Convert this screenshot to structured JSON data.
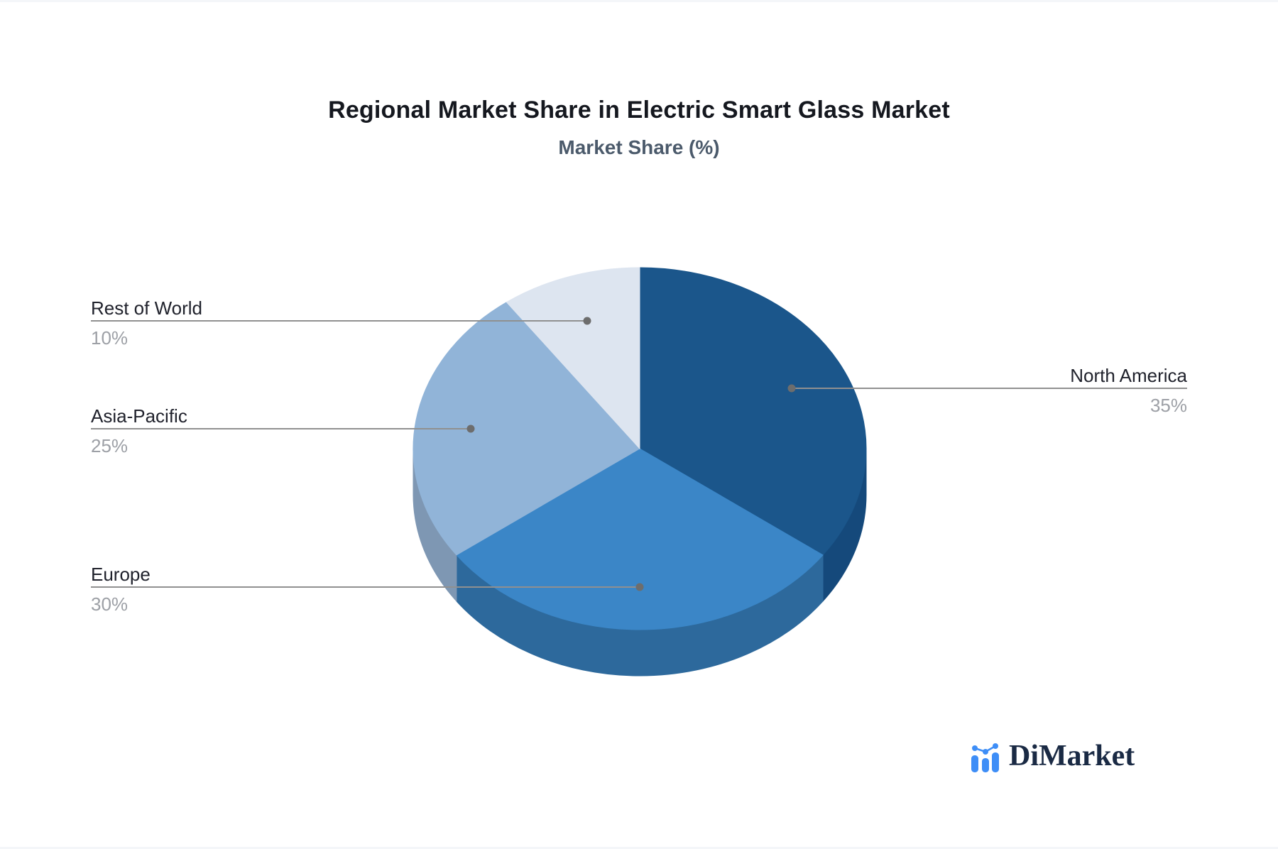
{
  "page": {
    "background": "#ffffff"
  },
  "chart_data": {
    "type": "pie",
    "effect": "3d",
    "title": "Regional Market Share in Electric Smart Glass Market",
    "subtitle": "Market Share (%)",
    "categories": [
      "North America",
      "Europe",
      "Asia-Pacific",
      "Rest of World"
    ],
    "values": [
      35,
      30,
      25,
      10
    ],
    "value_labels": [
      "35%",
      "30%",
      "25%",
      "10%"
    ],
    "unit": "%",
    "start_angle_deg": 0,
    "direction": "clockwise",
    "colors": [
      "#1B568B",
      "#3B86C7",
      "#91B4D8",
      "#DDE5F0"
    ],
    "side_colors": [
      "#15497B",
      "#2D699C",
      "#7E97B3",
      "#C9D3E2"
    ],
    "label_color": "#20222C",
    "value_color": "#9DA0A6",
    "callout_line_color": "#909090",
    "callout_dot_color": "#6D6D6D",
    "legend_position": "callout-labels"
  },
  "branding": {
    "logo_text": "DiMarket",
    "logo_icon": "bar-chart-trend-icon",
    "logo_text_color": "#1A2A44",
    "logo_icon_color": "#3E8EF7"
  }
}
